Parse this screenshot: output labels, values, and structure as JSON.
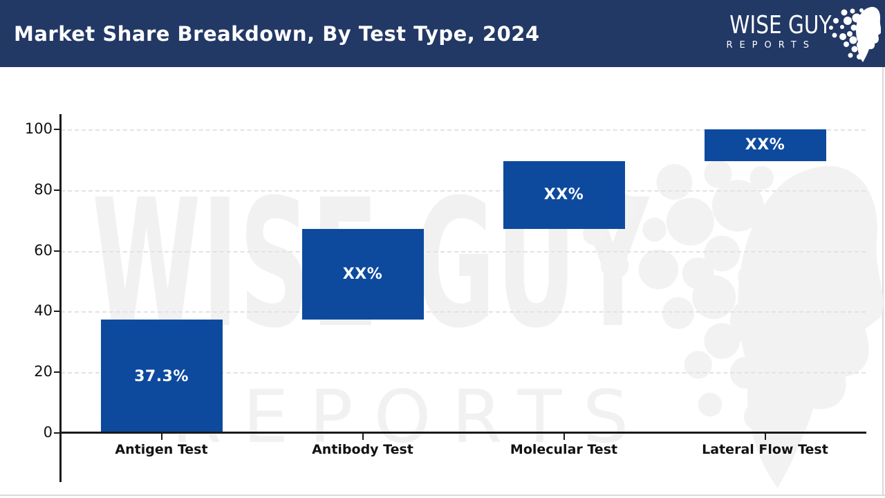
{
  "header": {
    "title": "Market Share Breakdown, By Test Type, 2024",
    "logo": {
      "line1": "WISE GUY",
      "line2": "REPORTS"
    }
  },
  "watermark": {
    "line1": "WISE GUY",
    "line2": "REPORTS"
  },
  "chart_data": {
    "type": "bar",
    "subtype": "waterfall",
    "title": "Market Share Breakdown, By Test Type, 2024",
    "xlabel": "",
    "ylabel": "",
    "ylim": [
      0,
      100
    ],
    "yticks": [
      0,
      20,
      40,
      60,
      80,
      100
    ],
    "grid": "horizontal-dashed",
    "legend": "none",
    "categories": [
      "Antigen Test",
      "Antibody Test",
      "Molecular Test",
      "Lateral Flow Test"
    ],
    "bars": [
      {
        "category": "Antigen Test",
        "start": 0,
        "end": 37.3,
        "label": "37.3%"
      },
      {
        "category": "Antibody Test",
        "start": 37.3,
        "end": 67.2,
        "label": "XX%"
      },
      {
        "category": "Molecular Test",
        "start": 67.2,
        "end": 89.6,
        "label": "XX%"
      },
      {
        "category": "Lateral Flow Test",
        "start": 89.6,
        "end": 100,
        "label": "XX%"
      }
    ]
  },
  "colors": {
    "header_bg": "#223865",
    "bar": "#0d4a9e",
    "bar_label": "#ffffff",
    "grid": "#e2e2e2",
    "axis": "#1a1a1a",
    "text": "#111111",
    "watermark": "#f1f1f1"
  }
}
